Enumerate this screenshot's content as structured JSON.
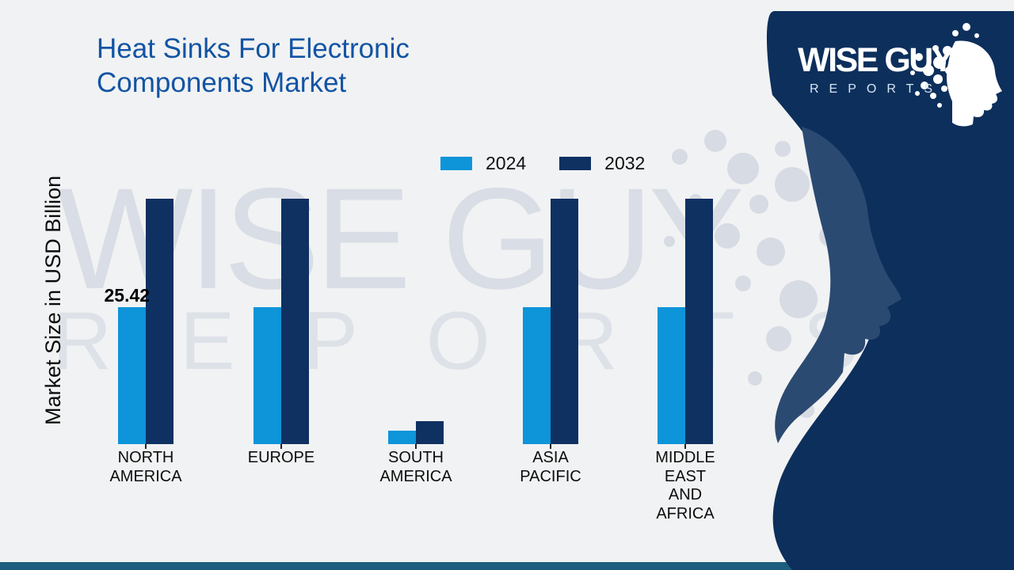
{
  "title": "Heat Sinks For Electronic Components Market",
  "brand_logo": {
    "wordmark": "WISE GUY",
    "sub": "REPORTS"
  },
  "background_watermark": {
    "wordmark": "WISE GUY",
    "sub": "REPORTS"
  },
  "legend": [
    {
      "label": "2024",
      "color": "#0d94d9"
    },
    {
      "label": "2032",
      "color": "#0e3162"
    }
  ],
  "colors": {
    "series_2024": "#0d94d9",
    "series_2032": "#0e3162",
    "title_blue": "#1254a4",
    "panel_navy": "#0d2f5c",
    "panel_face_navy": "#2b4a72",
    "bottom_strip_teal": "#1d5e7e",
    "background": "#f1f2f3",
    "watermark_gray": "#d9dde5"
  },
  "chart_data": {
    "type": "bar",
    "title": "Heat Sinks For Electronic Components Market",
    "xlabel": "",
    "ylabel": "Market Size in USD Billion",
    "ylim": [
      0,
      50
    ],
    "grid": false,
    "legend_position": "top-center",
    "categories": [
      "NORTH AMERICA",
      "EUROPE",
      "SOUTH AMERICA",
      "ASIA PACIFIC",
      "MIDDLE EAST AND AFRICA"
    ],
    "category_lines": [
      [
        "NORTH",
        "AMERICA"
      ],
      [
        "EUROPE"
      ],
      [
        "SOUTH",
        "AMERICA"
      ],
      [
        "ASIA",
        "PACIFIC"
      ],
      [
        "MIDDLE",
        "EAST",
        "AND",
        "AFRICA"
      ]
    ],
    "series": [
      {
        "name": "2024",
        "color": "#0d94d9",
        "values": [
          25.42,
          25.4,
          2.5,
          25.4,
          25.4
        ]
      },
      {
        "name": "2032",
        "color": "#0e3162",
        "values": [
          45.5,
          45.5,
          4.2,
          45.5,
          45.5
        ]
      }
    ],
    "annotation": {
      "text": "25.42",
      "series": "2024",
      "category": "NORTH AMERICA"
    }
  }
}
